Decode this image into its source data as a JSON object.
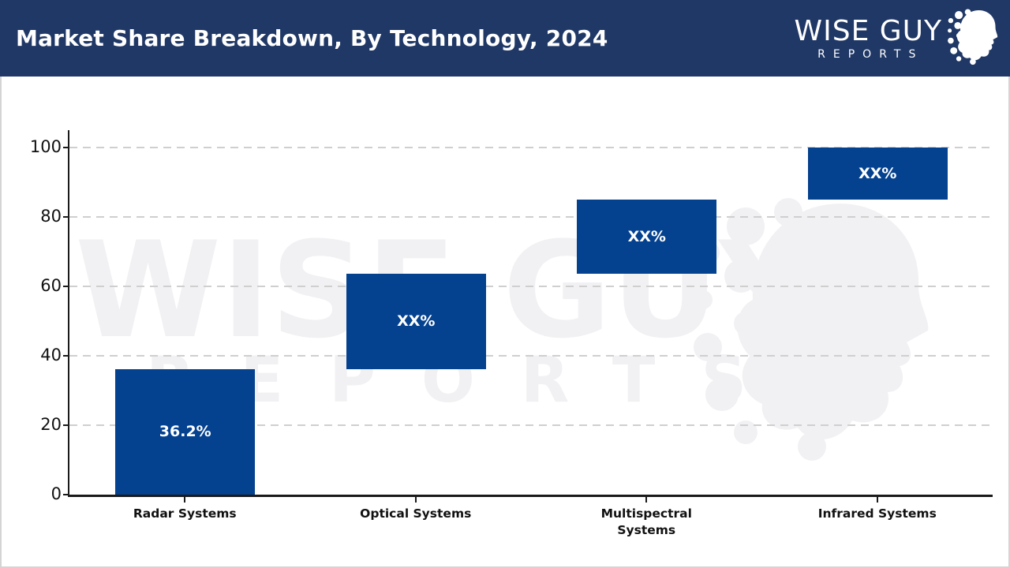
{
  "header": {
    "title": "Market Share Breakdown, By Technology, 2024",
    "logo": {
      "wordmark": "WISE GUY",
      "subtext": "REPORTS"
    }
  },
  "watermark": {
    "wordmark": "WISE GUY",
    "subtext": "REPORTS"
  },
  "colors": {
    "header_bg": "#203866",
    "bar_blue": "#04418f",
    "axis": "#1a1a1a",
    "gridline": "#cfcfcf",
    "watermark_gray": "#f1f1f4",
    "value_label": "#ffffff"
  },
  "chart_data": {
    "type": "bar",
    "subtype": "floating-waterfall",
    "title": "Market Share Breakdown, By Technology, 2024",
    "categories": [
      "Radar Systems",
      "Optical Systems",
      "Multispectral Systems",
      "Infrared Systems"
    ],
    "bars": [
      {
        "category": "Radar Systems",
        "start": 0,
        "end": 36.2,
        "label": "36.2%"
      },
      {
        "category": "Optical Systems",
        "start": 36.2,
        "end": 63.7,
        "label": "XX%"
      },
      {
        "category": "Multispectral Systems",
        "start": 63.7,
        "end": 85,
        "label": "XX%"
      },
      {
        "category": "Infrared Systems",
        "start": 85,
        "end": 100,
        "label": "XX%"
      }
    ],
    "xlabel": "",
    "ylabel": "",
    "ylim": [
      0,
      100
    ],
    "yticks": [
      0,
      20,
      40,
      60,
      80,
      100
    ],
    "grid": "horizontal-dashed",
    "legend": "none",
    "bar_color": "#04418f"
  }
}
